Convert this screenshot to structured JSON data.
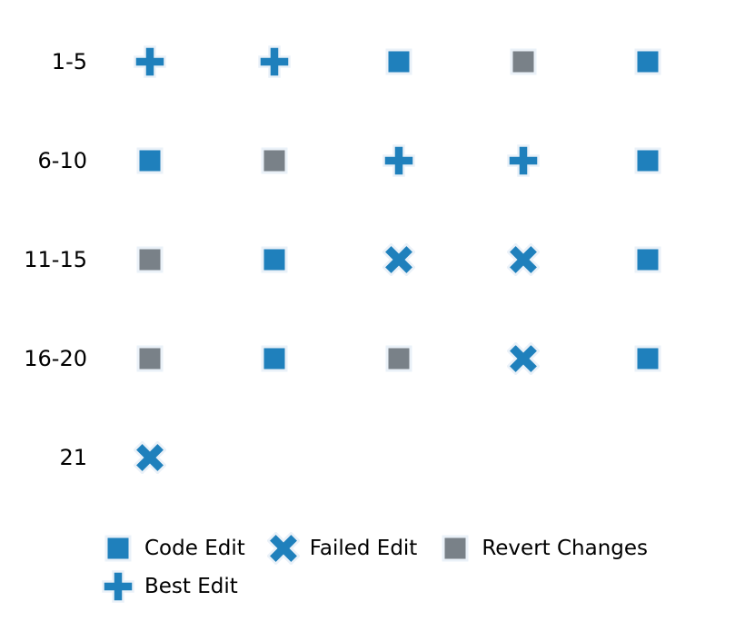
{
  "chart_data": {
    "type": "scatter",
    "title": "",
    "xlabel": "",
    "ylabel": "",
    "grid": false,
    "legend_position": "bottom",
    "y_categories": [
      "1-5",
      "6-10",
      "11-15",
      "16-20",
      "21"
    ],
    "marker_types": {
      "code": {
        "label": "Code Edit",
        "shape": "square",
        "color": "#1f80bc"
      },
      "failed": {
        "label": "Failed Edit",
        "shape": "x",
        "color": "#1f80bc"
      },
      "revert": {
        "label": "Revert Changes",
        "shape": "square",
        "color": "#798188"
      },
      "best": {
        "label": "Best Edit",
        "shape": "plus",
        "color": "#1f80bc"
      }
    },
    "rows": [
      {
        "label": "1-5",
        "markers": [
          "best",
          "best",
          "code",
          "revert",
          "code"
        ]
      },
      {
        "label": "6-10",
        "markers": [
          "code",
          "revert",
          "best",
          "best",
          "code"
        ]
      },
      {
        "label": "11-15",
        "markers": [
          "revert",
          "code",
          "failed",
          "failed",
          "code"
        ]
      },
      {
        "label": "16-20",
        "markers": [
          "revert",
          "code",
          "revert",
          "failed",
          "code"
        ]
      },
      {
        "label": "21",
        "markers": [
          "failed",
          null,
          null,
          null,
          null
        ]
      }
    ],
    "legend": [
      {
        "type": "code",
        "label": "Code Edit"
      },
      {
        "type": "failed",
        "label": "Failed Edit"
      },
      {
        "type": "revert",
        "label": "Revert Changes"
      },
      {
        "type": "best",
        "label": "Best Edit"
      }
    ],
    "colors": {
      "blue": "#1f80bc",
      "gray": "#798188",
      "marker_edge": "#eaf1f8",
      "text": "#000000",
      "background": "#ffffff"
    }
  }
}
